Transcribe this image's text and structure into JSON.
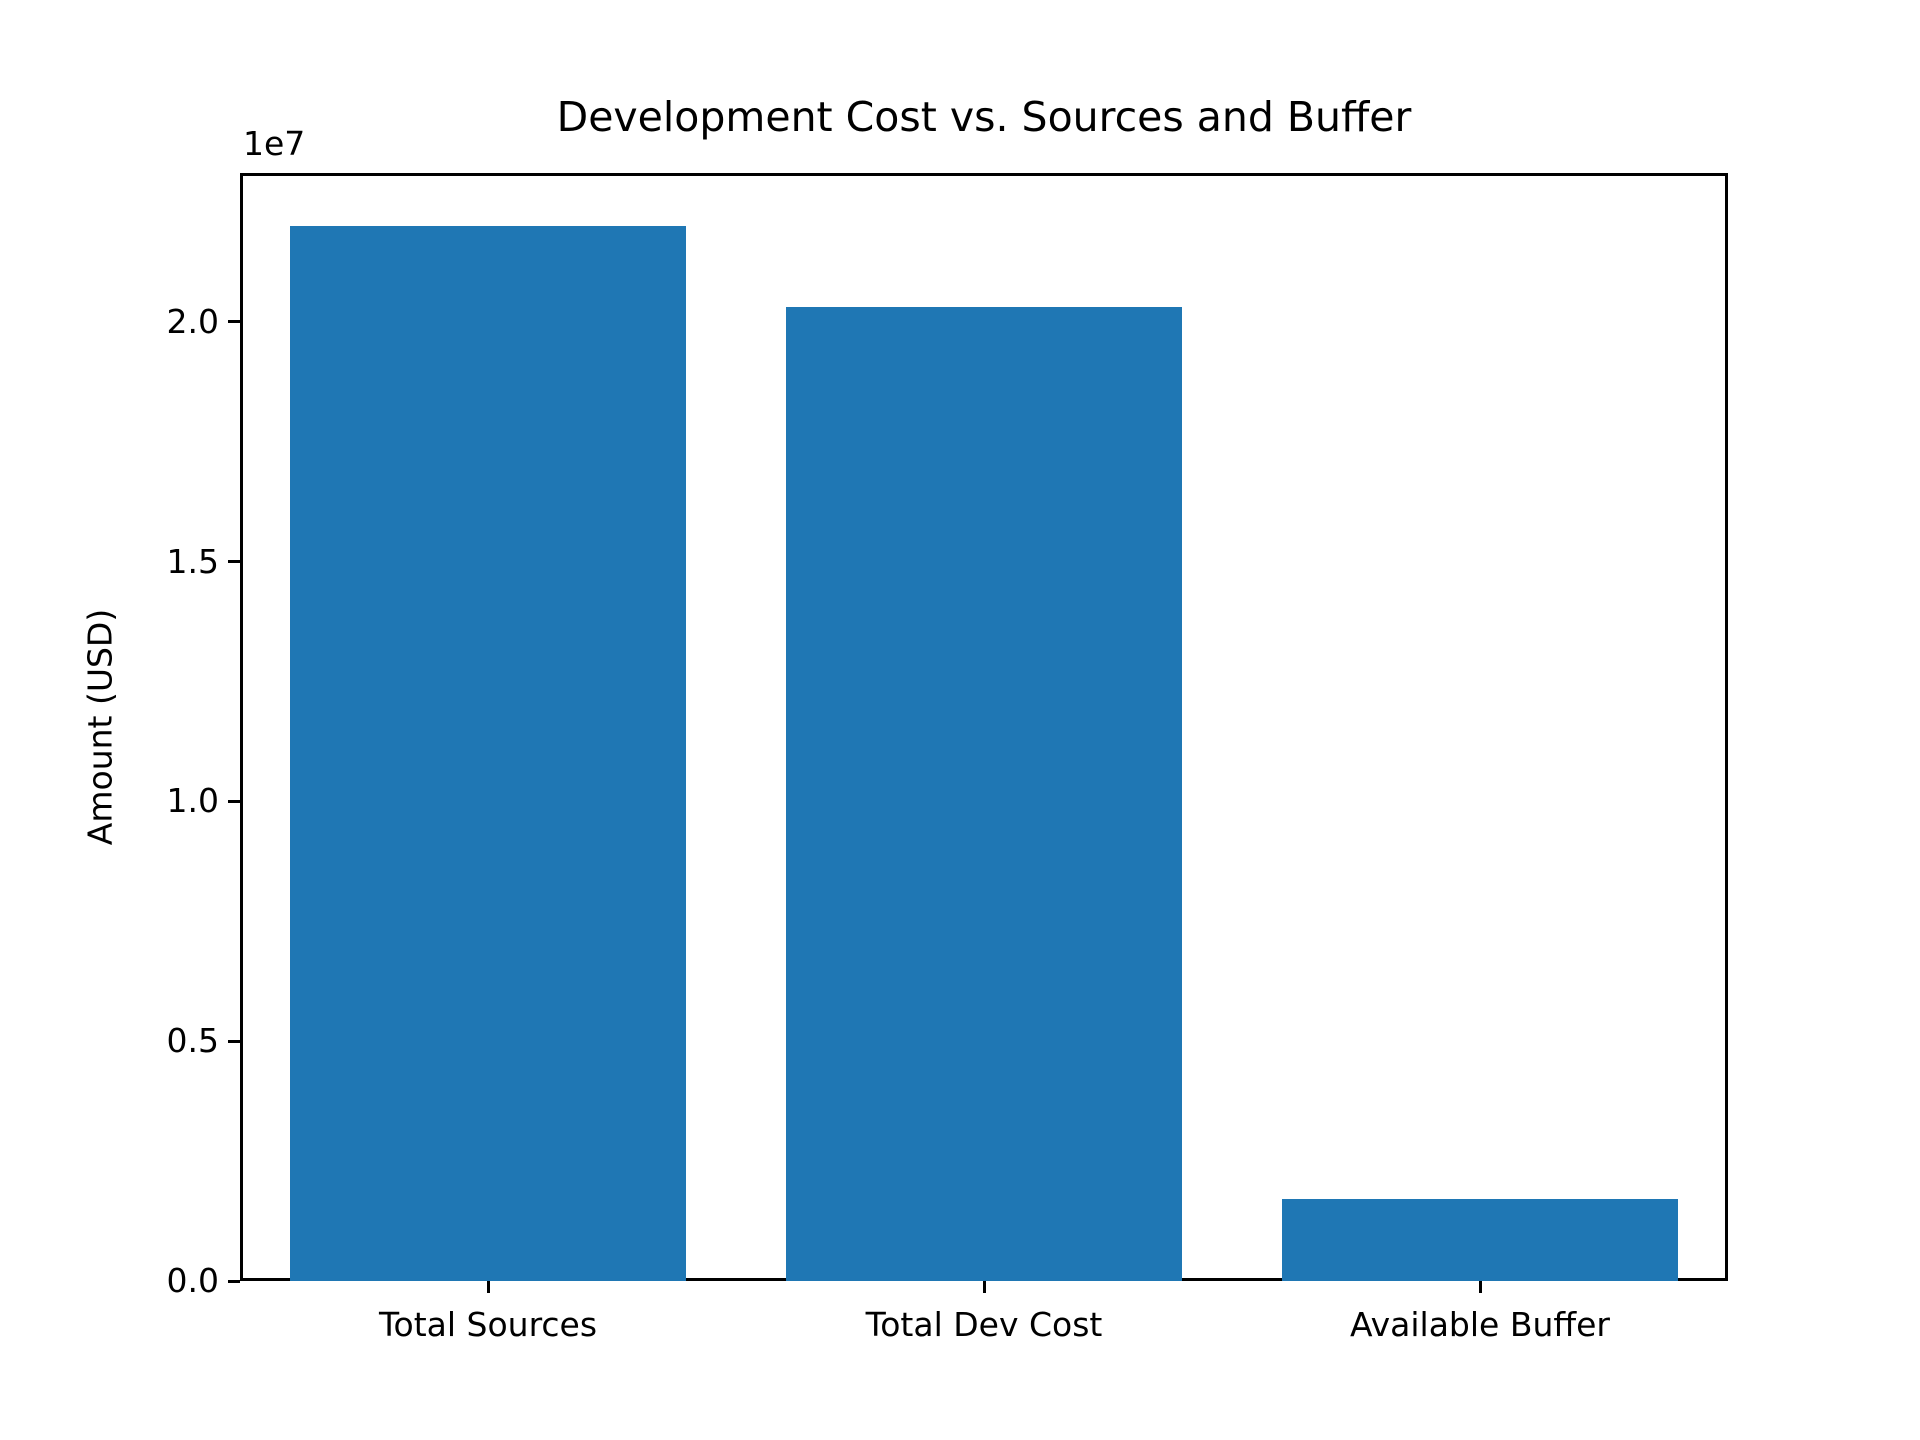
{
  "chart_data": {
    "type": "bar",
    "title": "Development Cost vs. Sources and Buffer",
    "categories": [
      "Total Sources",
      "Total Dev Cost",
      "Available Buffer"
    ],
    "values": [
      22000000,
      20300000,
      1700000
    ],
    "series": [
      {
        "name": "Amount",
        "values": [
          22000000,
          20300000,
          1700000
        ]
      }
    ],
    "xlabel": "",
    "ylabel": "Amount (USD)",
    "ylim": [
      0,
      23100000
    ],
    "yticks": [
      0,
      5000000,
      10000000,
      15000000,
      20000000
    ],
    "ytick_labels": [
      "0.0",
      "0.5",
      "1.0",
      "1.5",
      "2.0"
    ],
    "offset_text": "1e7",
    "bar_color": "#1f77b4",
    "bar_width_fraction": 0.8,
    "grid": false,
    "legend_position": "none"
  }
}
